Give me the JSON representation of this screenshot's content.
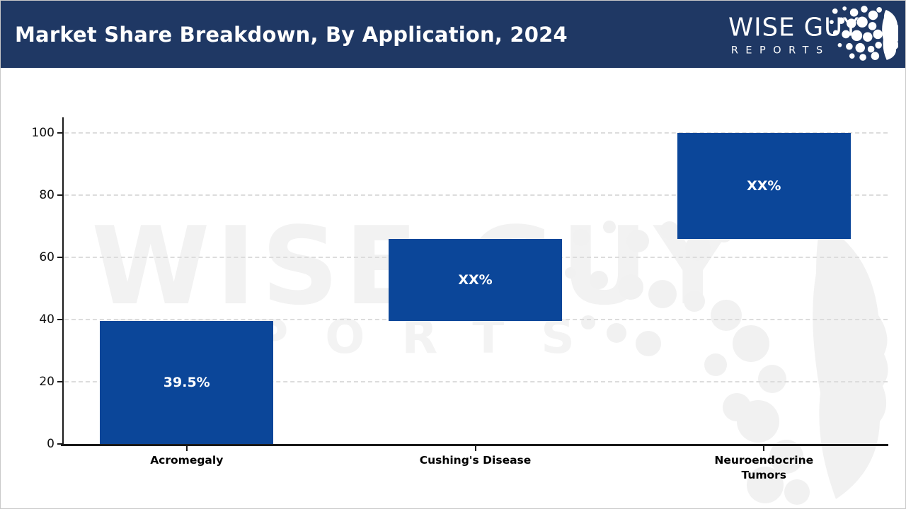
{
  "header": {
    "title": "Market Share Breakdown, By Application, 2024",
    "bg_color": "#1f3864",
    "logo": {
      "line1": "WISE GUY",
      "line2": "REPORTS"
    }
  },
  "watermark": {
    "line1": "WISE GUY",
    "line2": "REPORTS"
  },
  "chart_data": {
    "type": "bar",
    "subtype": "floating-range-bars (waterfall style market share breakdown)",
    "title": "Market Share Breakdown, By Application, 2024",
    "categories": [
      "Acromegaly",
      "Cushing's Disease",
      "Neuroendocrine\nTumors"
    ],
    "bars": [
      {
        "category": "Acromegaly",
        "start": 0,
        "end": 39.5,
        "label": "39.5%"
      },
      {
        "category": "Cushing's Disease",
        "start": 39.5,
        "end": 66,
        "label": "XX%"
      },
      {
        "category": "Neuroendocrine Tumors",
        "start": 66,
        "end": 100,
        "label": "XX%"
      }
    ],
    "yticks": [
      0,
      20,
      40,
      60,
      80,
      100
    ],
    "ylim": [
      0,
      105
    ],
    "xlabel": "",
    "ylabel": "",
    "grid": "dashed horizontal gridlines at yticks",
    "legend": "none",
    "bar_color": "#0b4699",
    "bar_label_color": "#ffffff",
    "axis_color": "#1a1a1a",
    "gridline_color": "#dcdcdc"
  }
}
